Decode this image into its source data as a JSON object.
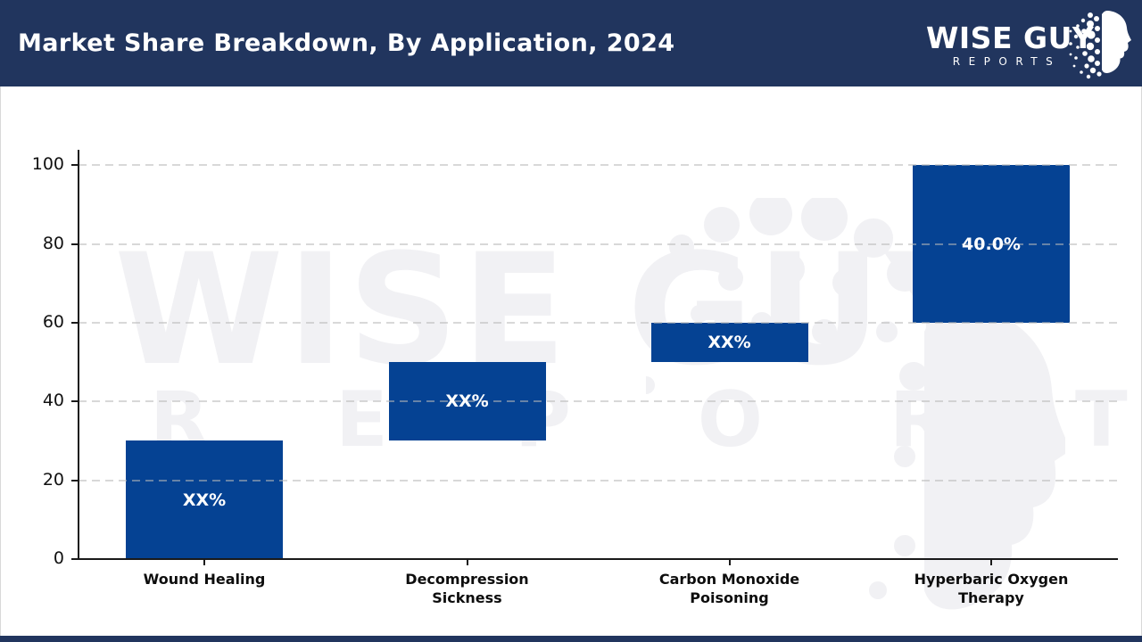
{
  "header": {
    "title": "Market Share Breakdown, By Application, 2024"
  },
  "logo": {
    "line1": "WISE GUY",
    "line2": "REPORTS"
  },
  "watermark": {
    "line1": "WISE GUY",
    "line2": "R E P O R T S"
  },
  "colors": {
    "header_navy": "#21355e",
    "bar_blue": "#054293",
    "grid_gray": "#d3d3d3",
    "watermark_gray": "#f1f1f4",
    "bar_label_white": "#ffffff",
    "axis_black": "#1a1a1a"
  },
  "chart_data": {
    "type": "bar",
    "variant": "waterfall",
    "title": "Market Share Breakdown, By Application, 2024",
    "categories": [
      "Wound Healing",
      "Decompression Sickness",
      "Carbon Monoxide Poisoning",
      "Hyperbaric Oxygen Therapy"
    ],
    "category_lines": [
      [
        "Wound Healing"
      ],
      [
        "Decompression",
        "Sickness"
      ],
      [
        "Carbon Monoxide",
        "Poisoning"
      ],
      [
        "Hyperbaric Oxygen",
        "Therapy"
      ]
    ],
    "segments": [
      {
        "category": "Wound Healing",
        "start": 0,
        "end": 30,
        "label": "XX%"
      },
      {
        "category": "Decompression Sickness",
        "start": 30,
        "end": 50,
        "label": "XX%"
      },
      {
        "category": "Carbon Monoxide Poisoning",
        "start": 50,
        "end": 60,
        "label": "XX%"
      },
      {
        "category": "Hyperbaric Oxygen Therapy",
        "start": 60,
        "end": 100,
        "label": "40.0%"
      }
    ],
    "yticks": [
      0,
      20,
      40,
      60,
      80,
      100
    ],
    "ylim": [
      0,
      103.5
    ],
    "xlabel": "",
    "ylabel": "",
    "grid": true,
    "grid_style": "dashed",
    "grid_above_bars": true,
    "legend_position": "none",
    "bar_color": "#054293"
  }
}
